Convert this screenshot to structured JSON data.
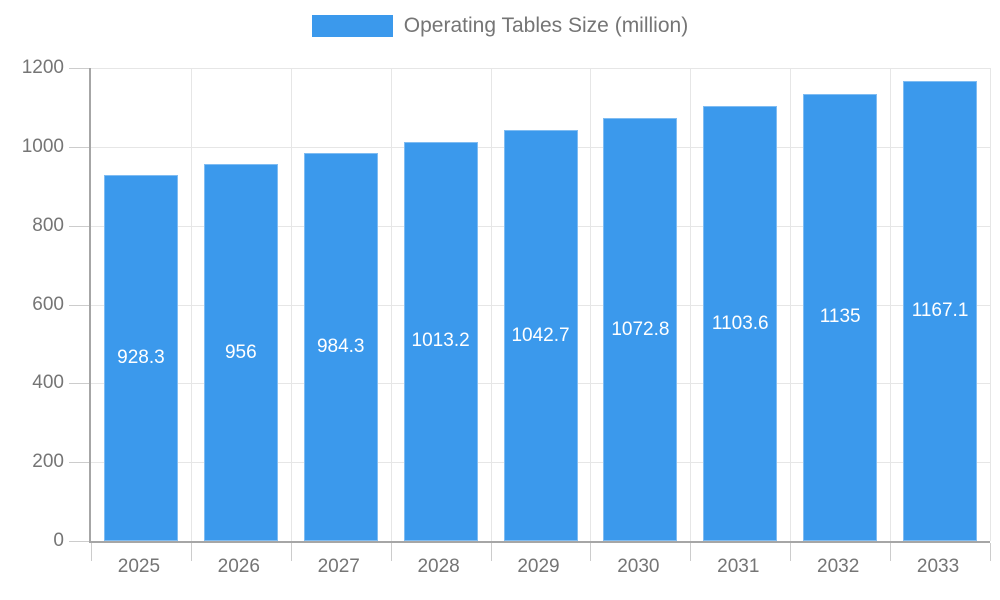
{
  "legend": {
    "label": "Operating Tables Size (million)"
  },
  "chart_data": {
    "type": "bar",
    "title": "Operating Tables Size (million)",
    "categories": [
      "2025",
      "2026",
      "2027",
      "2028",
      "2029",
      "2030",
      "2031",
      "2032",
      "2033"
    ],
    "values": [
      928.3,
      956,
      984.3,
      1013.2,
      1042.7,
      1072.8,
      1103.6,
      1135,
      1167.1
    ],
    "value_labels": [
      "928.3",
      "956",
      "984.3",
      "1013.2",
      "1042.7",
      "1072.8",
      "1103.6",
      "1135",
      "1167.1"
    ],
    "xlabel": "",
    "ylabel": "",
    "ylim": [
      0,
      1200
    ],
    "yticks": [
      0,
      200,
      400,
      600,
      800,
      1000,
      1200
    ],
    "grid": true,
    "legend_position": "top",
    "colors": {
      "bar_fill": "#3b99ec",
      "bar_label_text": "#ffffff",
      "axis_text": "#757575",
      "gridline": "#e6e6e6",
      "axis_line": "#a6a6a6",
      "tick": "#cccccc",
      "background": "#ffffff"
    }
  }
}
